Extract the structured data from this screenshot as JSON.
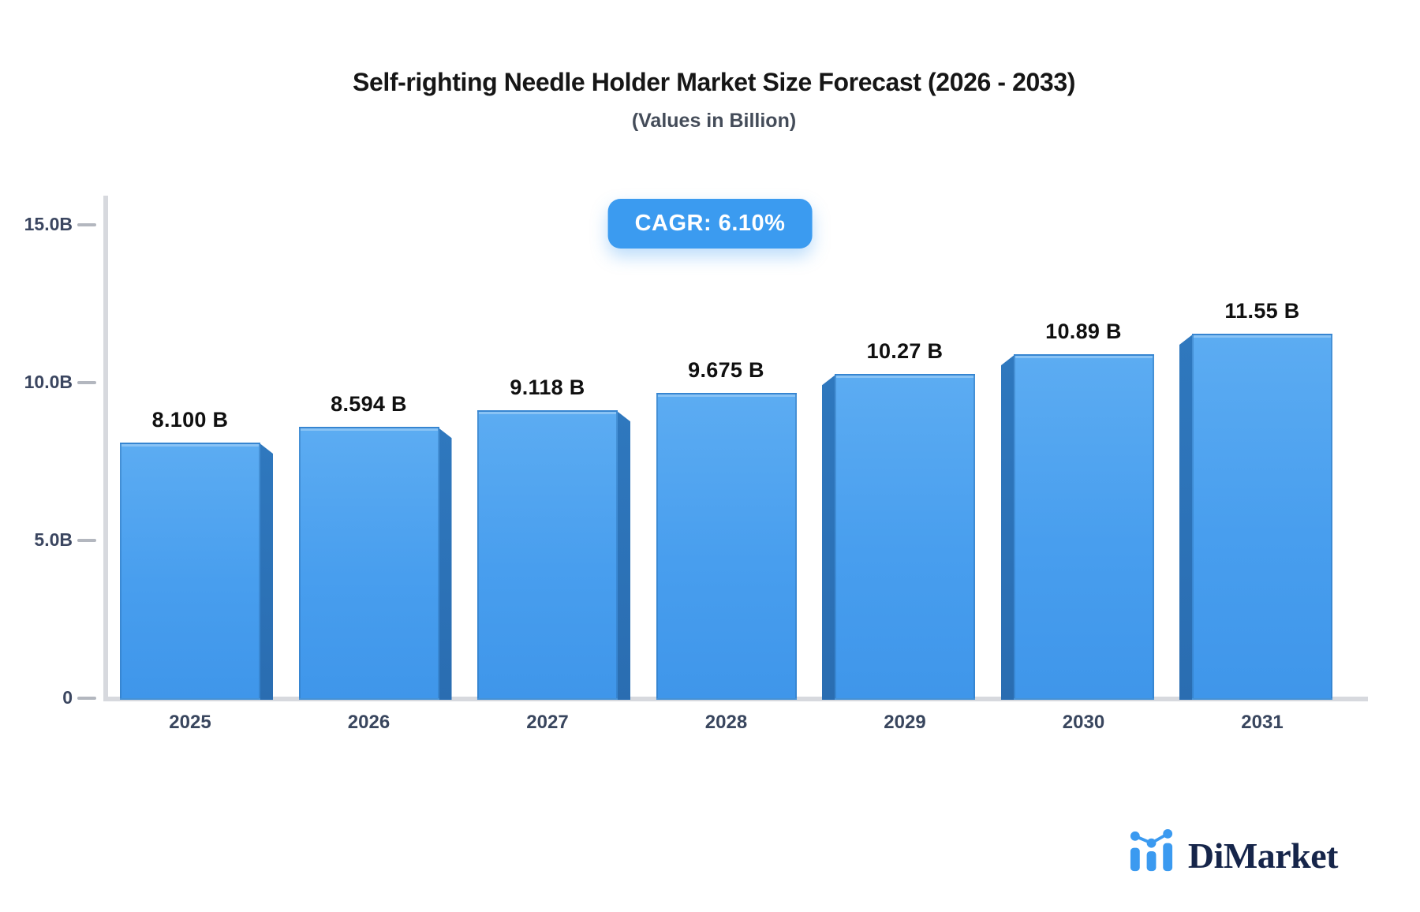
{
  "header": {
    "title": "Self-righting Needle Holder Market Size Forecast (2026 - 2033)",
    "subtitle": "(Values in Billion)",
    "cagr_label": "CAGR: 6.10%"
  },
  "chart_data": {
    "type": "bar",
    "title": "Self-righting Needle Holder Market Size Forecast (2026 - 2033)",
    "subtitle": "(Values in Billion)",
    "categories": [
      "2025",
      "2026",
      "2027",
      "2028",
      "2029",
      "2030",
      "2031"
    ],
    "values": [
      8.1,
      8.594,
      9.118,
      9.675,
      10.27,
      10.89,
      11.55
    ],
    "value_labels": [
      "8.100 B",
      "8.594 B",
      "9.118 B",
      "9.675 B",
      "10.27 B",
      "10.89 B",
      "11.55 B"
    ],
    "xlabel": "",
    "ylabel": "",
    "ylim": [
      0,
      15
    ],
    "yticks": [
      {
        "label": "0",
        "value": 0
      },
      {
        "label": "5.0B",
        "value": 5
      },
      {
        "label": "10.0B",
        "value": 10
      },
      {
        "label": "15.0B",
        "value": 15
      }
    ],
    "grid": false,
    "legend": false,
    "colors": {
      "bar_face_top": "#5cacf2",
      "bar_face_bottom": "#3f96ea",
      "bar_side": "#2d72b8",
      "axis_line": "#d7d9de",
      "tick_label": "#3b4660",
      "value_label": "#101010",
      "badge_background": "#3b9bf0",
      "badge_text": "#ffffff"
    }
  },
  "branding": {
    "logo_text": "DiMarket",
    "logo_icon": "bar-chart-icon",
    "logo_icon_color": "#3b9af0",
    "logo_text_color": "#16254a"
  }
}
